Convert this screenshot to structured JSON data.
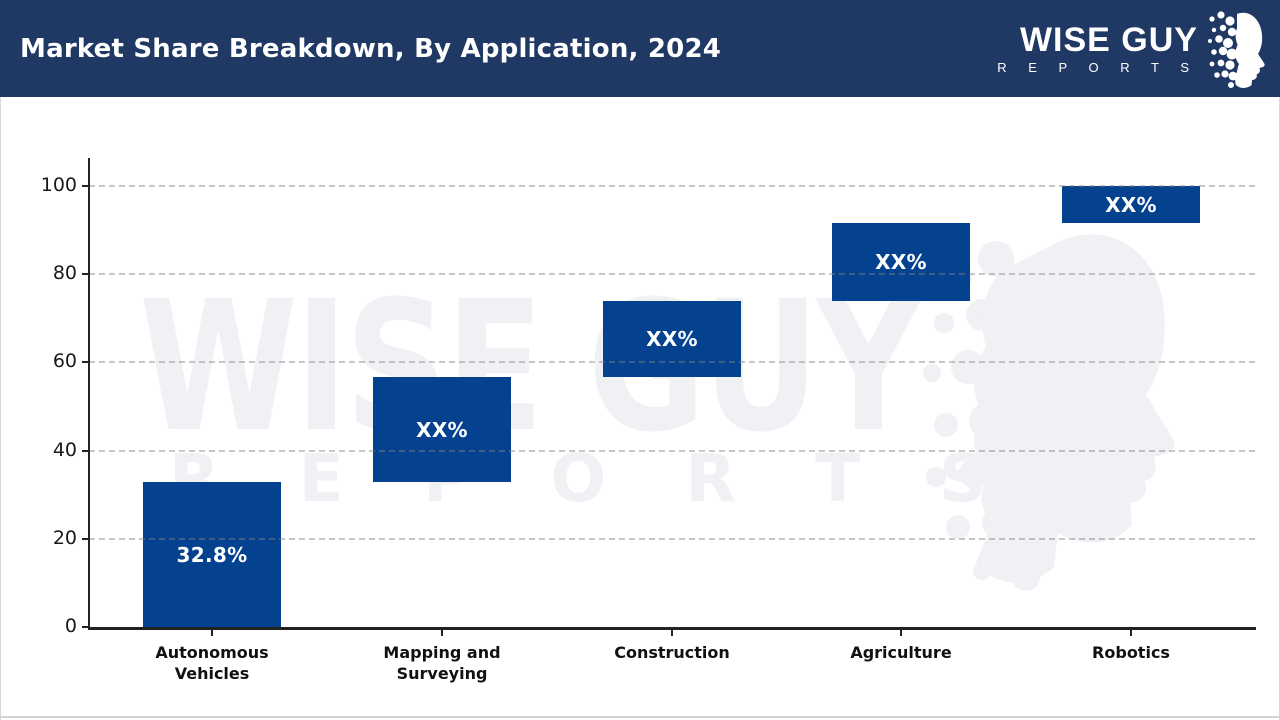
{
  "header": {
    "title": "Market Share Breakdown, By Application, 2024",
    "logo": {
      "line1": "WISE GUY",
      "line2": "R E P O R T S"
    }
  },
  "watermark": {
    "line1": "WISE GUY",
    "line2": "R E P O R T S"
  },
  "colors": {
    "header_bg": "#1f3864",
    "bar": "#04418f",
    "bar_label_text": "#ffffff",
    "axis": "#222222",
    "tick_label": "#1a1a1a",
    "gridline": "rgba(130,130,130,0.45)",
    "watermark": "#f0f1f4"
  },
  "chart_data": {
    "type": "bar",
    "subtype": "waterfall",
    "title": "Market Share Breakdown, By Application, 2024",
    "categories": [
      "Autonomous Vehicles",
      "Mapping and Surveying",
      "Construction",
      "Agriculture",
      "Robotics"
    ],
    "category_label_lines": [
      [
        "Autonomous",
        "Vehicles"
      ],
      [
        "Mapping and",
        "Surveying"
      ],
      [
        "Construction"
      ],
      [
        "Agriculture"
      ],
      [
        "Robotics"
      ]
    ],
    "segments": [
      {
        "category": "Autonomous Vehicles",
        "start": 0,
        "end": 32.8,
        "value_label": "32.8%"
      },
      {
        "category": "Mapping and Surveying",
        "start": 32.8,
        "end": 56.6,
        "value_label": "XX%"
      },
      {
        "category": "Construction",
        "start": 56.6,
        "end": 74.0,
        "value_label": "XX%"
      },
      {
        "category": "Agriculture",
        "start": 74.0,
        "end": 91.5,
        "value_label": "XX%"
      },
      {
        "category": "Robotics",
        "start": 91.5,
        "end": 100,
        "value_label": "XX%"
      }
    ],
    "ylim": [
      0,
      100
    ],
    "yticks": [
      0,
      20,
      40,
      60,
      80,
      100
    ],
    "xlabel": "",
    "ylabel": "",
    "grid": "horizontal-dashed",
    "legend": "none",
    "bar_color": "#04418f"
  }
}
